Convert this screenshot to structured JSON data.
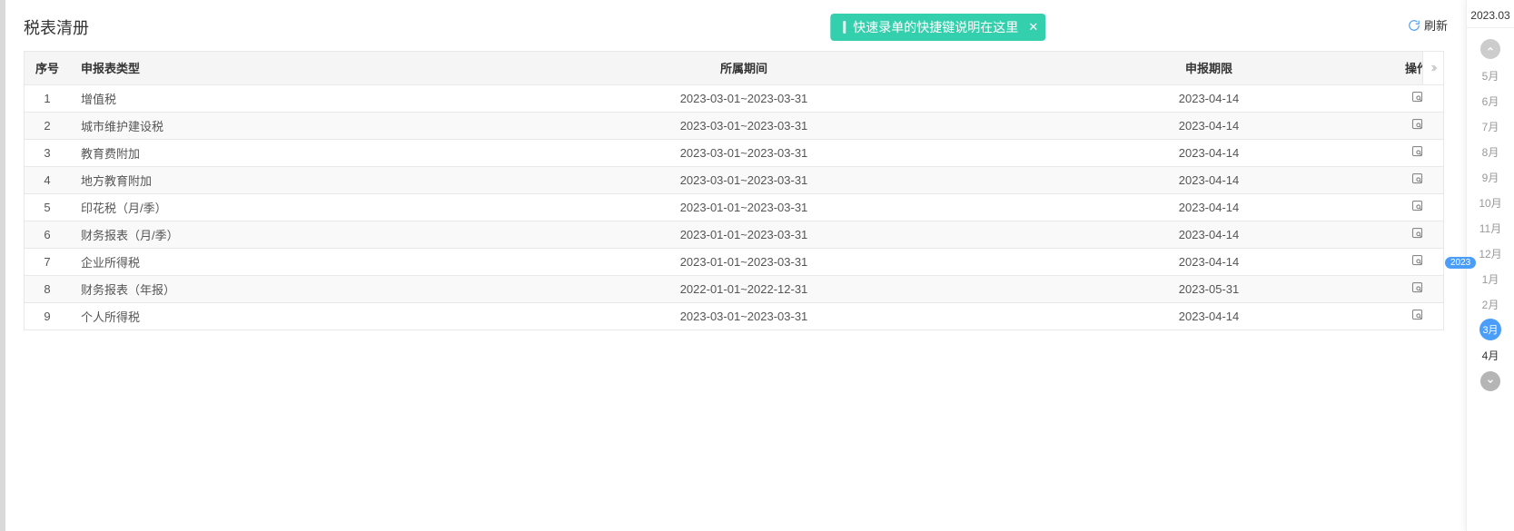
{
  "header": {
    "title": "税表清册",
    "refresh_label": "刷新"
  },
  "tip": {
    "text": "快速录单的快捷键说明在这里",
    "close": "✕"
  },
  "table": {
    "columns": {
      "seq": "序号",
      "type": "申报表类型",
      "period": "所属期间",
      "deadline": "申报期限",
      "action": "操作"
    },
    "rows": [
      {
        "seq": "1",
        "type": "增值税",
        "period": "2023-03-01~2023-03-31",
        "deadline": "2023-04-14"
      },
      {
        "seq": "2",
        "type": "城市维护建设税",
        "period": "2023-03-01~2023-03-31",
        "deadline": "2023-04-14"
      },
      {
        "seq": "3",
        "type": "教育费附加",
        "period": "2023-03-01~2023-03-31",
        "deadline": "2023-04-14"
      },
      {
        "seq": "4",
        "type": "地方教育附加",
        "period": "2023-03-01~2023-03-31",
        "deadline": "2023-04-14"
      },
      {
        "seq": "5",
        "type": "印花税（月/季）",
        "period": "2023-01-01~2023-03-31",
        "deadline": "2023-04-14"
      },
      {
        "seq": "6",
        "type": "财务报表（月/季）",
        "period": "2023-01-01~2023-03-31",
        "deadline": "2023-04-14"
      },
      {
        "seq": "7",
        "type": "企业所得税",
        "period": "2023-01-01~2023-03-31",
        "deadline": "2023-04-14"
      },
      {
        "seq": "8",
        "type": "财务报表（年报）",
        "period": "2022-01-01~2022-12-31",
        "deadline": "2023-05-31"
      },
      {
        "seq": "9",
        "type": "个人所得税",
        "period": "2023-03-01~2023-03-31",
        "deadline": "2023-04-14"
      }
    ]
  },
  "timeline": {
    "current_label": "2023.03",
    "year_badge": "2023",
    "months": [
      {
        "label": "5月",
        "state": "dim"
      },
      {
        "label": "6月",
        "state": "dim"
      },
      {
        "label": "7月",
        "state": "dim"
      },
      {
        "label": "8月",
        "state": "dim"
      },
      {
        "label": "9月",
        "state": "dim"
      },
      {
        "label": "10月",
        "state": "dim"
      },
      {
        "label": "11月",
        "state": "dim"
      },
      {
        "label": "12月",
        "state": "dim",
        "year_badge_after": true
      },
      {
        "label": "1月",
        "state": "dim"
      },
      {
        "label": "2月",
        "state": "dim"
      },
      {
        "label": "3月",
        "state": "active"
      },
      {
        "label": "4月",
        "state": "dark"
      }
    ]
  },
  "colors": {
    "accent_green": "#34d0ae",
    "accent_blue": "#4a9df8",
    "header_bg": "#f5f5f5",
    "row_alt_bg": "#f9f9f9",
    "border": "#e8e8e8"
  }
}
